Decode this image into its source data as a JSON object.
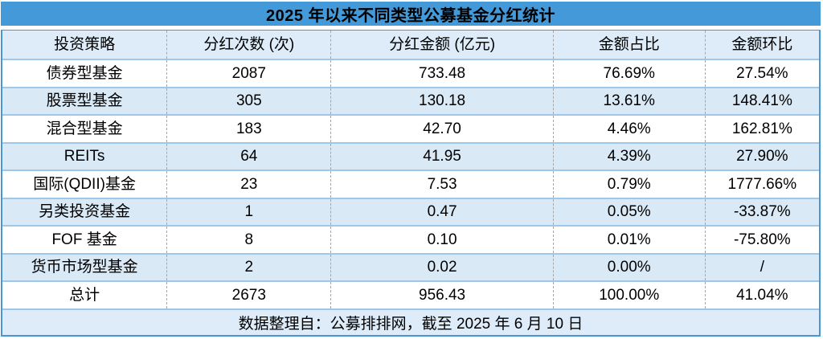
{
  "chart_data": {
    "type": "table",
    "title": "2025 年以来不同类型公募基金分红统计",
    "headers": [
      "投资策略",
      "分红次数 (次)",
      "分红金额 (亿元)",
      "金额占比",
      "金额环比"
    ],
    "rows": [
      [
        "债券型基金",
        "2087",
        "733.48",
        "76.69%",
        "27.54%"
      ],
      [
        "股票型基金",
        "305",
        "130.18",
        "13.61%",
        "148.41%"
      ],
      [
        "混合型基金",
        "183",
        "42.70",
        "4.46%",
        "162.81%"
      ],
      [
        "REITs",
        "64",
        "41.95",
        "4.39%",
        "27.90%"
      ],
      [
        "国际(QDII)基金",
        "23",
        "7.53",
        "0.79%",
        "1777.66%"
      ],
      [
        "另类投资基金",
        "1",
        "0.47",
        "0.05%",
        "-33.87%"
      ],
      [
        "FOF 基金",
        "8",
        "0.10",
        "0.01%",
        "-75.80%"
      ],
      [
        "货币市场型基金",
        "2",
        "0.02",
        "0.00%",
        "/"
      ],
      [
        "总计",
        "2673",
        "956.43",
        "100.00%",
        "41.04%"
      ]
    ],
    "footer": "数据整理自：公募排排网，截至 2025 年 6 月 10 日",
    "layout_hints": {
      "grid": "solid light-blue row separators, dashed gray column dividers",
      "alternating_rows": true
    }
  },
  "colors": {
    "title_bar": "#449ad8",
    "table_border": "#4697d3",
    "header_bg": "#ddecf8",
    "row_alt": "#d9e9f6",
    "row_separator": "#9fc7e9",
    "divider_dash": "#a6a6a6",
    "text": "#000000"
  }
}
